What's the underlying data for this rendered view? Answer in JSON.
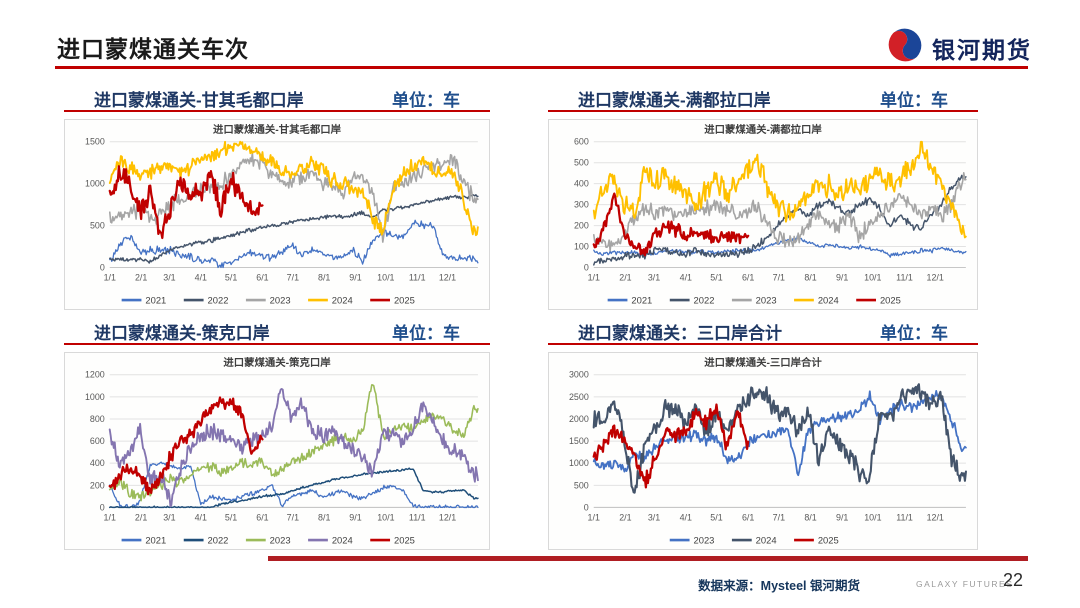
{
  "page": {
    "title": "进口蒙煤通关车次",
    "logo_text": "银河期货",
    "source_label": "数据来源：Mysteel 银河期货",
    "brand_caps": "GALAXY FUTURES",
    "page_number": "22",
    "accent_red": "#C00000"
  },
  "chart_data": [
    {
      "type": "line",
      "header_title": "进口蒙煤通关-甘其毛都口岸",
      "unit_label": "单位：车",
      "inner_title": "进口蒙煤通关-甘其毛都口岸",
      "ylim": [
        0,
        1500
      ],
      "yticks": [
        0,
        500,
        1000,
        1500
      ],
      "x_labels": [
        "1/1",
        "2/1",
        "3/1",
        "4/1",
        "5/1",
        "6/1",
        "7/1",
        "8/1",
        "9/1",
        "10/1",
        "11/1",
        "12/1"
      ],
      "grid": true,
      "legend_position": "bottom",
      "series": [
        {
          "name": "2021",
          "color": "#4472C4",
          "width": 1.3,
          "jitter": 55,
          "anchor_step": 10,
          "end_day": 365,
          "anchors": [
            60,
            280,
            380,
            180,
            210,
            200,
            200,
            150,
            120,
            80,
            100,
            30,
            60,
            130,
            180,
            150,
            100,
            200,
            250,
            150,
            210,
            180,
            120,
            100,
            230,
            60,
            300,
            420,
            380,
            350,
            540,
            500,
            480,
            130,
            100,
            120,
            90
          ]
        },
        {
          "name": "2022",
          "color": "#44546A",
          "width": 1.5,
          "jitter": 28,
          "anchor_step": 10,
          "end_day": 365,
          "anchors": [
            100,
            100,
            80,
            100,
            60,
            150,
            200,
            250,
            280,
            300,
            320,
            350,
            380,
            420,
            450,
            480,
            500,
            520,
            545,
            560,
            580,
            600,
            620,
            600,
            630,
            650,
            600,
            680,
            700,
            720,
            750,
            780,
            800,
            820,
            850,
            840,
            860
          ]
        },
        {
          "name": "2023",
          "color": "#A5A5A5",
          "width": 1.6,
          "jitter": 110,
          "anchor_step": 10,
          "end_day": 365,
          "anchors": [
            560,
            620,
            650,
            700,
            560,
            650,
            750,
            820,
            850,
            900,
            950,
            1000,
            1100,
            1200,
            1300,
            1250,
            1100,
            1000,
            1050,
            1100,
            1150,
            1000,
            950,
            900,
            1050,
            1100,
            900,
            350,
            950,
            1000,
            1100,
            1150,
            1200,
            1250,
            1300,
            1000,
            820
          ]
        },
        {
          "name": "2024",
          "color": "#FFC000",
          "width": 1.9,
          "jitter": 110,
          "anchor_step": 10,
          "end_day": 365,
          "anchors": [
            1050,
            1300,
            1200,
            1100,
            1150,
            1200,
            1250,
            1100,
            1200,
            1300,
            1350,
            1400,
            1450,
            1480,
            1400,
            1300,
            1250,
            1150,
            1100,
            1200,
            1250,
            1150,
            1050,
            1000,
            950,
            900,
            600,
            420,
            950,
            1100,
            1200,
            1250,
            1150,
            1100,
            1150,
            800,
            430
          ]
        },
        {
          "name": "2025",
          "color": "#C00000",
          "width": 2.3,
          "jitter": 160,
          "anchor_step": 10,
          "end_day": 152,
          "anchors": [
            900,
            1100,
            1000,
            620,
            900,
            420,
            700,
            1000,
            820,
            900,
            1100,
            700,
            1050,
            850,
            650,
            720
          ]
        }
      ]
    },
    {
      "type": "line",
      "header_title": "进口蒙煤通关-满都拉口岸",
      "unit_label": "单位：车",
      "inner_title": "进口蒙煤通关-满都拉口岸",
      "ylim": [
        0,
        600
      ],
      "yticks": [
        0,
        100,
        200,
        300,
        400,
        500,
        600
      ],
      "x_labels": [
        "1/1",
        "2/1",
        "3/1",
        "4/1",
        "5/1",
        "6/1",
        "7/1",
        "8/1",
        "9/1",
        "10/1",
        "11/1",
        "12/1"
      ],
      "grid": true,
      "legend_position": "bottom",
      "series": [
        {
          "name": "2021",
          "color": "#4472C4",
          "width": 1.3,
          "jitter": 12,
          "anchor_step": 10,
          "end_day": 365,
          "anchors": [
            80,
            60,
            70,
            70,
            70,
            60,
            70,
            80,
            80,
            75,
            75,
            75,
            70,
            75,
            80,
            80,
            80,
            100,
            120,
            130,
            140,
            120,
            100,
            110,
            100,
            90,
            100,
            90,
            80,
            60,
            70,
            70,
            80,
            80,
            90,
            80,
            70
          ]
        },
        {
          "name": "2022",
          "color": "#44546A",
          "width": 1.5,
          "jitter": 22,
          "anchor_step": 10,
          "end_day": 365,
          "anchors": [
            20,
            40,
            30,
            60,
            50,
            60,
            80,
            90,
            70,
            60,
            80,
            70,
            60,
            70,
            60,
            80,
            100,
            150,
            200,
            250,
            280,
            250,
            300,
            320,
            280,
            250,
            300,
            320,
            280,
            200,
            250,
            200,
            180,
            250,
            300,
            380,
            430
          ]
        },
        {
          "name": "2023",
          "color": "#A5A5A5",
          "width": 1.6,
          "jitter": 45,
          "anchor_step": 10,
          "end_day": 365,
          "anchors": [
            150,
            120,
            100,
            150,
            250,
            280,
            260,
            280,
            250,
            260,
            270,
            280,
            300,
            280,
            260,
            250,
            300,
            200,
            150,
            120,
            150,
            200,
            250,
            220,
            200,
            250,
            150,
            200,
            250,
            300,
            350,
            300,
            250,
            280,
            250,
            300,
            420
          ]
        },
        {
          "name": "2024",
          "color": "#FFC000",
          "width": 1.9,
          "jitter": 65,
          "anchor_step": 10,
          "end_day": 365,
          "anchors": [
            250,
            380,
            420,
            300,
            250,
            480,
            400,
            450,
            380,
            350,
            300,
            380,
            420,
            350,
            400,
            480,
            500,
            380,
            300,
            250,
            300,
            350,
            400,
            380,
            350,
            400,
            380,
            420,
            450,
            400,
            420,
            480,
            580,
            480,
            400,
            300,
            170
          ]
        },
        {
          "name": "2025",
          "color": "#C00000",
          "width": 2.3,
          "jitter": 40,
          "anchor_step": 10,
          "end_day": 152,
          "anchors": [
            80,
            200,
            350,
            150,
            100,
            80,
            150,
            200,
            180,
            160,
            150,
            170,
            140,
            150,
            130,
            160
          ]
        }
      ]
    },
    {
      "type": "line",
      "header_title": "进口蒙煤通关-策克口岸",
      "unit_label": "单位：车",
      "inner_title": "进口蒙煤通关-策克口岸",
      "ylim": [
        0,
        1200
      ],
      "yticks": [
        0,
        200,
        400,
        600,
        800,
        1000,
        1200
      ],
      "x_labels": [
        "1/1",
        "2/1",
        "3/1",
        "4/1",
        "5/1",
        "6/1",
        "7/1",
        "8/1",
        "9/1",
        "10/1",
        "11/1",
        "12/1"
      ],
      "grid": true,
      "legend_position": "bottom",
      "series": [
        {
          "name": "2021",
          "color": "#4472C4",
          "width": 1.3,
          "jitter": 25,
          "anchor_step": 10,
          "end_day": 365,
          "anchors": [
            200,
            20,
            0,
            50,
            380,
            400,
            380,
            350,
            380,
            20,
            100,
            80,
            60,
            100,
            120,
            150,
            200,
            20,
            100,
            120,
            150,
            100,
            120,
            150,
            100,
            80,
            120,
            180,
            200,
            150,
            10,
            0,
            0,
            0,
            0,
            0,
            0
          ]
        },
        {
          "name": "2022",
          "color": "#1F4E79",
          "width": 1.5,
          "jitter": 12,
          "anchor_step": 10,
          "end_day": 365,
          "anchors": [
            0,
            0,
            0,
            0,
            0,
            0,
            0,
            0,
            0,
            0,
            0,
            30,
            50,
            60,
            80,
            100,
            110,
            120,
            150,
            180,
            200,
            220,
            250,
            270,
            280,
            300,
            310,
            320,
            330,
            340,
            350,
            150,
            140,
            140,
            150,
            160,
            80
          ]
        },
        {
          "name": "2023",
          "color": "#9BBB59",
          "width": 1.6,
          "jitter": 55,
          "anchor_step": 10,
          "end_day": 365,
          "anchors": [
            150,
            230,
            130,
            100,
            150,
            200,
            250,
            220,
            300,
            350,
            380,
            320,
            350,
            400,
            380,
            420,
            300,
            350,
            400,
            450,
            500,
            550,
            600,
            650,
            600,
            700,
            1150,
            650,
            700,
            750,
            700,
            800,
            850,
            800,
            700,
            650,
            880
          ]
        },
        {
          "name": "2024",
          "color": "#8475B0",
          "width": 1.9,
          "jitter": 85,
          "anchor_step": 10,
          "end_day": 365,
          "anchors": [
            650,
            400,
            500,
            700,
            250,
            300,
            60,
            350,
            550,
            650,
            700,
            650,
            600,
            550,
            600,
            650,
            700,
            1100,
            800,
            950,
            700,
            650,
            700,
            600,
            550,
            450,
            300,
            700,
            650,
            600,
            700,
            930,
            800,
            600,
            500,
            450,
            310
          ]
        },
        {
          "name": "2025",
          "color": "#C00000",
          "width": 2.3,
          "jitter": 75,
          "anchor_step": 10,
          "end_day": 152,
          "anchors": [
            150,
            280,
            350,
            300,
            120,
            250,
            450,
            600,
            650,
            780,
            900,
            950,
            950,
            850,
            520,
            620
          ]
        }
      ]
    },
    {
      "type": "line",
      "header_title": "进口蒙煤通关：三口岸合计",
      "unit_label": "单位：车",
      "inner_title": "进口蒙煤通关-三口岸合计",
      "ylim": [
        0,
        3000
      ],
      "yticks": [
        0,
        500,
        1000,
        1500,
        2000,
        2500,
        3000
      ],
      "x_labels": [
        "1/1",
        "2/1",
        "3/1",
        "4/1",
        "5/1",
        "6/1",
        "7/1",
        "8/1",
        "9/1",
        "10/1",
        "11/1",
        "12/1"
      ],
      "grid": true,
      "legend_position": "bottom",
      "series": [
        {
          "name": "2023",
          "color": "#4472C4",
          "width": 1.8,
          "jitter": 140,
          "anchor_step": 10,
          "end_day": 365,
          "anchors": [
            1050,
            900,
            1000,
            850,
            1200,
            1100,
            1400,
            1500,
            1600,
            1550,
            1650,
            1500,
            1600,
            1100,
            1050,
            1450,
            1600,
            1650,
            1700,
            1750,
            750,
            1750,
            1900,
            2000,
            2050,
            2100,
            2200,
            2550,
            2000,
            2200,
            2300,
            2250,
            2400,
            2500,
            2500,
            2000,
            1320
          ]
        },
        {
          "name": "2024",
          "color": "#44546A",
          "width": 2.1,
          "jitter": 260,
          "anchor_step": 10,
          "end_day": 365,
          "anchors": [
            2000,
            1900,
            2400,
            1500,
            250,
            1450,
            1700,
            2300,
            2200,
            1900,
            2250,
            1700,
            2100,
            1800,
            2200,
            2400,
            2650,
            2500,
            2100,
            2200,
            1700,
            2100,
            1100,
            1800,
            1500,
            1200,
            800,
            700,
            2200,
            2100,
            2400,
            2600,
            2650,
            2300,
            2500,
            1100,
            760
          ]
        },
        {
          "name": "2025",
          "color": "#C00000",
          "width": 2.3,
          "jitter": 200,
          "anchor_step": 10,
          "end_day": 152,
          "anchors": [
            1100,
            1450,
            1700,
            1500,
            1200,
            550,
            1100,
            1700,
            1600,
            1750,
            2100,
            1900,
            2250,
            1300,
            2200,
            1450
          ]
        }
      ]
    }
  ]
}
